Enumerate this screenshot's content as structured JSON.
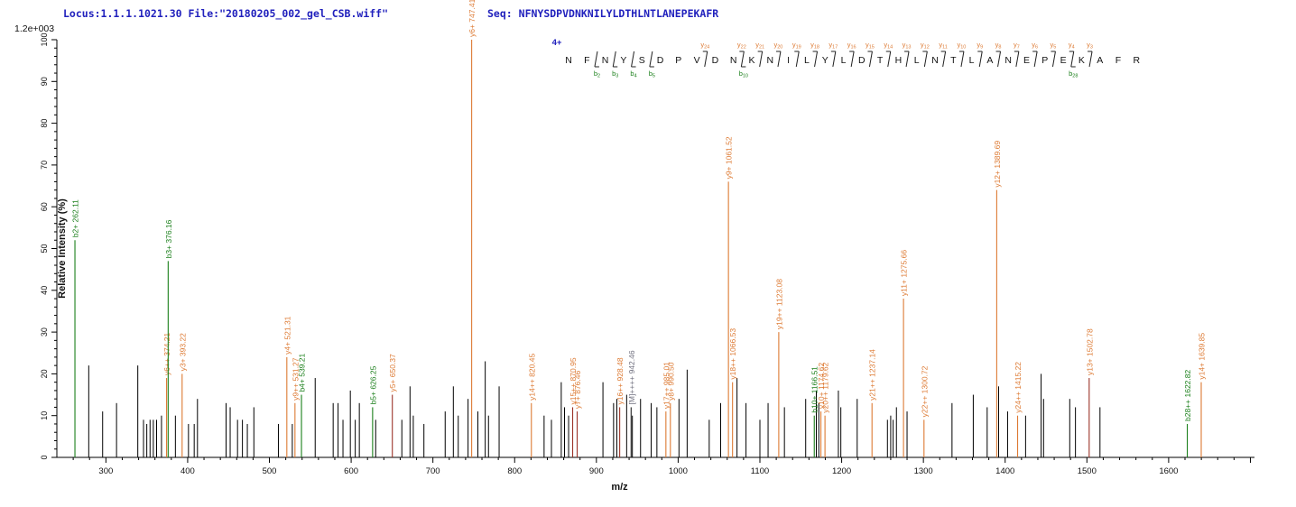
{
  "header": {
    "locus_text": "Locus:1.1.1.1021.30 File:\"20180205_002_gel_CSB.wiff\"",
    "seq_label": "Seq:",
    "seq_value": "NFNYSDPVDNKNILYLDTHLNTLANEPEKAFR"
  },
  "colors": {
    "header_text": "#2121bd",
    "b_ion": "#1a7f1a",
    "y_ion": "#dd7a33",
    "matched_dark": "#9b3328",
    "precursor_label": "#70707f",
    "unmatched_peak": "#000000",
    "axis": "#000000",
    "precursor_charge": "#2121bd",
    "sequence_letter": "#111111"
  },
  "chart_data": {
    "type": "bar",
    "subtype": "MS/MS stick spectrum",
    "max_intensity_label": "1.2e+003",
    "xlabel": "m/z",
    "ylabel": "Relative  Intensity (%)",
    "xlim": [
      240,
      1705
    ],
    "ylim": [
      0,
      100
    ],
    "x_major_ticks": [
      300,
      400,
      500,
      600,
      700,
      800,
      900,
      1000,
      1100,
      1200,
      1300,
      1400,
      1500,
      1600
    ],
    "x_minor_step": 20,
    "y_major_ticks": [
      0,
      10,
      20,
      30,
      40,
      50,
      60,
      70,
      80,
      90,
      100
    ],
    "y_minor_step": 2,
    "grid": "off",
    "legend": "none",
    "precursor": {
      "charge_label": "4+",
      "ion_label": "[M]++++ 942.46"
    },
    "sequence": "NFNYSDPVDNKNILYLDTHLNTLANEPEKAFR",
    "sequence_marks": [
      {
        "pos": 2,
        "b": "b2"
      },
      {
        "pos": 3,
        "b": "b3"
      },
      {
        "pos": 4,
        "b": "b4"
      },
      {
        "pos": 5,
        "b": "b5"
      },
      {
        "pos": 8,
        "y": "y24"
      },
      {
        "pos": 10,
        "y": "y22",
        "b": "b10"
      },
      {
        "pos": 11,
        "y": "y21"
      },
      {
        "pos": 12,
        "y": "y20"
      },
      {
        "pos": 13,
        "y": "y19"
      },
      {
        "pos": 14,
        "y": "y18"
      },
      {
        "pos": 15,
        "y": "y17"
      },
      {
        "pos": 16,
        "y": "y16"
      },
      {
        "pos": 17,
        "y": "y15"
      },
      {
        "pos": 18,
        "y": "y14"
      },
      {
        "pos": 19,
        "y": "y13"
      },
      {
        "pos": 20,
        "y": "y12"
      },
      {
        "pos": 21,
        "y": "y11"
      },
      {
        "pos": 22,
        "y": "y10"
      },
      {
        "pos": 23,
        "y": "y9"
      },
      {
        "pos": 24,
        "y": "y8"
      },
      {
        "pos": 25,
        "y": "y7"
      },
      {
        "pos": 26,
        "y": "y6"
      },
      {
        "pos": 27,
        "y": "y5"
      },
      {
        "pos": 28,
        "y": "y4",
        "b": "b28"
      },
      {
        "pos": 29,
        "y": "y3"
      }
    ],
    "labeled_peaks": [
      {
        "ion": "b2+",
        "mz": 262.11,
        "intensity": 52,
        "label": "b2+ 262.11",
        "series": "b"
      },
      {
        "ion": "y6++",
        "mz": 374.21,
        "intensity": 19,
        "label": "y6++ 374.21",
        "series": "y"
      },
      {
        "ion": "b3+",
        "mz": 376.16,
        "intensity": 47,
        "label": "b3+ 376.16",
        "series": "b"
      },
      {
        "ion": "y3+",
        "mz": 393.22,
        "intensity": 20,
        "label": "y3+ 393.22",
        "series": "y"
      },
      {
        "ion": "y4+",
        "mz": 521.31,
        "intensity": 24,
        "label": "y4+ 521.31",
        "series": "y"
      },
      {
        "ion": "y9++",
        "mz": 531.27,
        "intensity": 13,
        "label": "y9++ 531.27",
        "series": "y"
      },
      {
        "ion": "b4+",
        "mz": 539.21,
        "intensity": 15,
        "label": "b4+ 539.21",
        "series": "b"
      },
      {
        "ion": "b5+",
        "mz": 626.25,
        "intensity": 12,
        "label": "b5+ 626.25",
        "series": "b"
      },
      {
        "ion": "y5+",
        "mz": 650.37,
        "intensity": 15,
        "label": "y5+ 650.37",
        "series": "y",
        "dark": true
      },
      {
        "ion": "y6+",
        "mz": 747.41,
        "intensity": 100,
        "label": "y6+ 747.41",
        "series": "y"
      },
      {
        "ion": "y14++",
        "mz": 820.45,
        "intensity": 13,
        "label": "y14++ 820.45",
        "series": "y"
      },
      {
        "ion": "y15++",
        "mz": 870.95,
        "intensity": 12,
        "label": "y15++ 870.95",
        "series": "y",
        "dark": true
      },
      {
        "ion": "y7+",
        "mz": 876.46,
        "intensity": 11,
        "label": "y7+ 876.46",
        "series": "y",
        "dark": true
      },
      {
        "ion": "y16++",
        "mz": 928.48,
        "intensity": 12,
        "label": "y16++ 928.48",
        "series": "y",
        "dark": true
      },
      {
        "ion": "[M]++++",
        "mz": 942.46,
        "intensity": 12,
        "label": "[M]++++ 942.46",
        "series": "M"
      },
      {
        "ion": "y17++",
        "mz": 985.01,
        "intensity": 11,
        "label": "y17++ 985.01",
        "series": "y"
      },
      {
        "ion": "y8+",
        "mz": 990.5,
        "intensity": 13,
        "label": "y8+ 990.50",
        "series": "y"
      },
      {
        "ion": "y9+",
        "mz": 1061.52,
        "intensity": 66,
        "label": "y9+ 1061.52",
        "series": "y"
      },
      {
        "ion": "y18++",
        "mz": 1066.53,
        "intensity": 18,
        "label": "y18++ 1066.53",
        "series": "y"
      },
      {
        "ion": "y19++",
        "mz": 1123.08,
        "intensity": 30,
        "label": "y19++ 1123.08",
        "series": "y"
      },
      {
        "ion": "b10+",
        "mz": 1166.51,
        "intensity": 10,
        "label": "b10+ 1166.51",
        "series": "b"
      },
      {
        "ion": "y10+",
        "mz": 1174.62,
        "intensity": 11,
        "label": "y10+ 1174.62",
        "series": "y"
      },
      {
        "ion": "y20++",
        "mz": 1179.62,
        "intensity": 10,
        "label": "y20++ 1179.62",
        "series": "y"
      },
      {
        "ion": "y21++",
        "mz": 1237.14,
        "intensity": 13,
        "label": "y21++ 1237.14",
        "series": "y"
      },
      {
        "ion": "y11+",
        "mz": 1275.66,
        "intensity": 38,
        "label": "y11+ 1275.66",
        "series": "y"
      },
      {
        "ion": "y22++",
        "mz": 1300.72,
        "intensity": 9,
        "label": "y22++ 1300.72",
        "series": "y"
      },
      {
        "ion": "y12+",
        "mz": 1389.69,
        "intensity": 64,
        "label": "y12+ 1389.69",
        "series": "y"
      },
      {
        "ion": "y24++",
        "mz": 1415.22,
        "intensity": 10,
        "label": "y24++ 1415.22",
        "series": "y"
      },
      {
        "ion": "y13+",
        "mz": 1502.78,
        "intensity": 19,
        "label": "y13+ 1502.78",
        "series": "y",
        "dark": true
      },
      {
        "ion": "b28++",
        "mz": 1622.82,
        "intensity": 8,
        "label": "b28++ 1622.82",
        "series": "b"
      },
      {
        "ion": "y14+",
        "mz": 1639.85,
        "intensity": 18,
        "label": "y14+ 1639.85",
        "series": "y"
      }
    ],
    "unlabeled_peaks": [
      [
        279,
        22
      ],
      [
        296,
        11
      ],
      [
        313,
        13
      ],
      [
        339,
        22
      ],
      [
        346,
        9
      ],
      [
        350,
        8
      ],
      [
        354,
        9
      ],
      [
        358,
        9
      ],
      [
        362,
        9
      ],
      [
        368,
        10
      ],
      [
        385,
        10
      ],
      [
        401,
        8
      ],
      [
        408,
        8
      ],
      [
        412,
        14
      ],
      [
        447,
        13
      ],
      [
        452,
        12
      ],
      [
        461,
        9
      ],
      [
        467,
        9
      ],
      [
        473,
        8
      ],
      [
        481,
        12
      ],
      [
        511,
        8
      ],
      [
        528,
        8
      ],
      [
        556,
        19
      ],
      [
        578,
        13
      ],
      [
        584,
        13
      ],
      [
        590,
        9
      ],
      [
        599,
        16
      ],
      [
        605,
        9
      ],
      [
        610,
        13
      ],
      [
        630,
        9
      ],
      [
        662,
        9
      ],
      [
        672,
        17
      ],
      [
        676,
        10
      ],
      [
        689,
        8
      ],
      [
        715,
        11
      ],
      [
        725,
        17
      ],
      [
        731,
        10
      ],
      [
        743,
        14
      ],
      [
        755,
        11
      ],
      [
        764,
        23
      ],
      [
        768,
        10
      ],
      [
        781,
        17
      ],
      [
        836,
        10
      ],
      [
        845,
        9
      ],
      [
        857,
        18
      ],
      [
        861,
        12
      ],
      [
        866,
        10
      ],
      [
        908,
        18
      ],
      [
        921,
        13
      ],
      [
        925,
        14
      ],
      [
        937,
        15
      ],
      [
        944,
        10
      ],
      [
        954,
        14
      ],
      [
        967,
        13
      ],
      [
        974,
        12
      ],
      [
        1001,
        14
      ],
      [
        1011,
        21
      ],
      [
        1038,
        9
      ],
      [
        1052,
        13
      ],
      [
        1072,
        19
      ],
      [
        1083,
        13
      ],
      [
        1100,
        9
      ],
      [
        1110,
        13
      ],
      [
        1130,
        12
      ],
      [
        1156,
        14
      ],
      [
        1169,
        16
      ],
      [
        1172,
        13
      ],
      [
        1196,
        16
      ],
      [
        1199,
        12
      ],
      [
        1219,
        14
      ],
      [
        1256,
        9
      ],
      [
        1260,
        10
      ],
      [
        1263,
        9
      ],
      [
        1267,
        12
      ],
      [
        1280,
        11
      ],
      [
        1335,
        13
      ],
      [
        1361,
        15
      ],
      [
        1378,
        12
      ],
      [
        1392,
        17
      ],
      [
        1403,
        11
      ],
      [
        1425,
        10
      ],
      [
        1444,
        20
      ],
      [
        1447,
        14
      ],
      [
        1479,
        14
      ],
      [
        1486,
        12
      ],
      [
        1516,
        12
      ]
    ]
  }
}
